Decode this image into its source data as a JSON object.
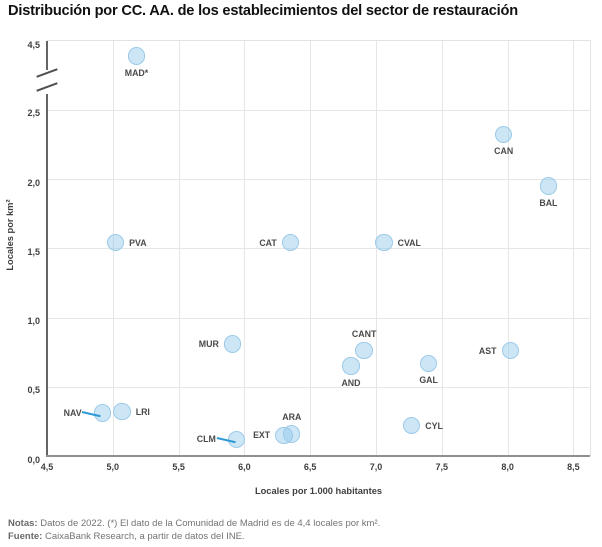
{
  "chart_data": {
    "type": "scatter",
    "title": "Distribución por CC. AA. de los establecimientos del sector de restauración",
    "xlabel": "Locales por 1.000 habitantes",
    "ylabel": "Locales por km²",
    "xlim": [
      4.5,
      8.5
    ],
    "ylim": [
      0.0,
      2.5
    ],
    "grid": true,
    "y_axis_break": true,
    "y_upper_tick": {
      "value": 4.5,
      "label": "4,5"
    },
    "x_ticks": [
      {
        "value": 4.5,
        "label": "4,5"
      },
      {
        "value": 5.0,
        "label": "5,0"
      },
      {
        "value": 5.5,
        "label": "5,5"
      },
      {
        "value": 6.0,
        "label": "6,0"
      },
      {
        "value": 6.5,
        "label": "6,5"
      },
      {
        "value": 7.0,
        "label": "7,0"
      },
      {
        "value": 7.5,
        "label": "7,5"
      },
      {
        "value": 8.0,
        "label": "8,0"
      },
      {
        "value": 8.5,
        "label": "8,5"
      }
    ],
    "y_ticks": [
      {
        "value": 0.0,
        "label": "0,0"
      },
      {
        "value": 0.5,
        "label": "0,5"
      },
      {
        "value": 1.0,
        "label": "1,0"
      },
      {
        "value": 1.5,
        "label": "1,5"
      },
      {
        "value": 2.0,
        "label": "2,0"
      },
      {
        "value": 2.5,
        "label": "2,5"
      }
    ],
    "points": [
      {
        "code": "MAD*",
        "x": 5.18,
        "y": 4.4,
        "label_pos": "below",
        "leader": false
      },
      {
        "code": "CAN",
        "x": 7.97,
        "y": 2.32,
        "label_pos": "below",
        "leader": false
      },
      {
        "code": "BAL",
        "x": 8.31,
        "y": 1.95,
        "label_pos": "below",
        "leader": false
      },
      {
        "code": "PVA",
        "x": 5.02,
        "y": 1.54,
        "label_pos": "right",
        "leader": false
      },
      {
        "code": "CAT",
        "x": 6.35,
        "y": 1.54,
        "label_pos": "left",
        "leader": false
      },
      {
        "code": "CVAL",
        "x": 7.06,
        "y": 1.54,
        "label_pos": "right",
        "leader": false
      },
      {
        "code": "MUR",
        "x": 5.91,
        "y": 0.81,
        "label_pos": "left",
        "leader": false
      },
      {
        "code": "CANT",
        "x": 6.91,
        "y": 0.76,
        "label_pos": "above",
        "leader": false
      },
      {
        "code": "AST",
        "x": 8.02,
        "y": 0.76,
        "label_pos": "left",
        "leader": false
      },
      {
        "code": "AND",
        "x": 6.81,
        "y": 0.65,
        "label_pos": "below",
        "leader": false
      },
      {
        "code": "GAL",
        "x": 7.4,
        "y": 0.67,
        "label_pos": "below",
        "leader": false
      },
      {
        "code": "NAV",
        "x": 4.92,
        "y": 0.31,
        "label_pos": "left",
        "leader": true
      },
      {
        "code": "LRI",
        "x": 5.07,
        "y": 0.32,
        "label_pos": "right",
        "leader": false
      },
      {
        "code": "CYL",
        "x": 7.27,
        "y": 0.22,
        "label_pos": "right",
        "leader": false
      },
      {
        "code": "EXT",
        "x": 6.3,
        "y": 0.15,
        "label_pos": "left",
        "leader": false
      },
      {
        "code": "ARA",
        "x": 6.36,
        "y": 0.16,
        "label_pos": "above",
        "leader": false
      },
      {
        "code": "CLM",
        "x": 5.94,
        "y": 0.12,
        "label_pos": "left",
        "leader": true
      }
    ]
  },
  "notes": {
    "notas_label": "Notas:",
    "notas_text": " Datos de 2022. (*) El dato de la Comunidad de Madrid es de 4,4 locales por km².",
    "fuente_label": "Fuente:",
    "fuente_text": " CaixaBank Research, a partir de datos del INE."
  },
  "colors": {
    "bubble_fill": "rgba(144,200,236,0.45)",
    "bubble_stroke": "#9ccae9",
    "leader_line": "#2e9ad5",
    "grid_line": "#e6e6e6",
    "axis_line": "#646464",
    "point_label_text": "#4a4a4a",
    "tick_text": "#3f3f3f",
    "note_text": "#747474",
    "title_text": "#111111"
  }
}
